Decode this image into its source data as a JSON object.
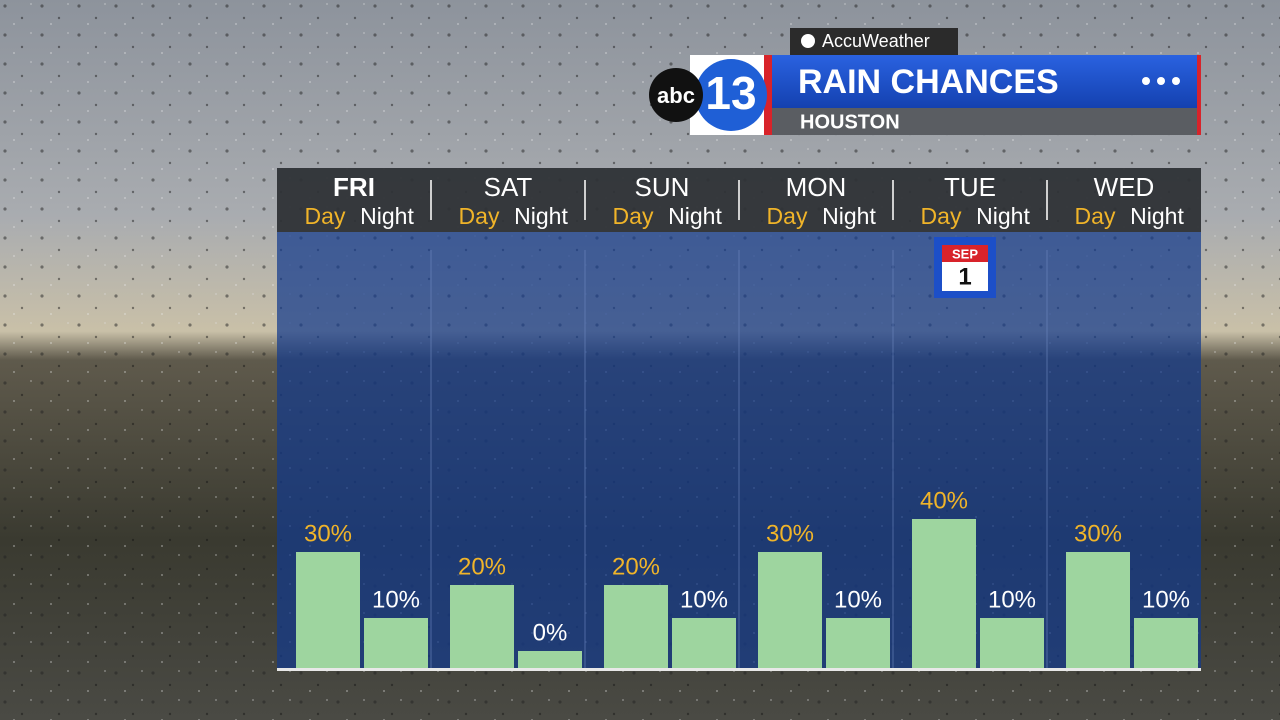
{
  "brand": {
    "provider": "AccuWeather",
    "network": "abc",
    "channel": "13"
  },
  "chart_data": {
    "type": "bar",
    "title": "RAIN CHANCES",
    "subtitle": "HOUSTON",
    "categories": [
      "FRI",
      "SAT",
      "SUN",
      "MON",
      "TUE",
      "WED"
    ],
    "series": [
      {
        "name": "Day",
        "color": "#9ed59f",
        "values": [
          30,
          20,
          20,
          30,
          40,
          30
        ],
        "value_labels": [
          "30%",
          "20%",
          "20%",
          "30%",
          "40%",
          "30%"
        ]
      },
      {
        "name": "Night",
        "color": "#9ed59f",
        "values": [
          10,
          0,
          10,
          10,
          10,
          10
        ],
        "value_labels": [
          "10%",
          "0%",
          "10%",
          "10%",
          "10%",
          "10%"
        ]
      }
    ],
    "annotation": {
      "month": "SEP",
      "day": "1"
    }
  }
}
